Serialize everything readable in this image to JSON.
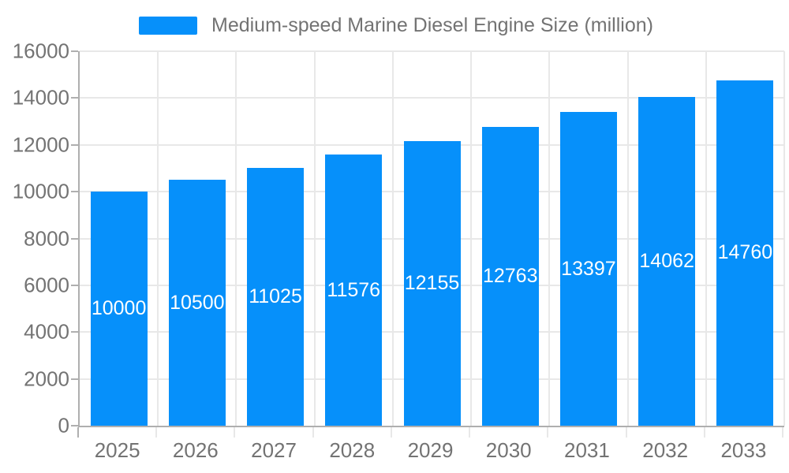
{
  "chart_data": {
    "type": "bar",
    "title": "Medium-speed Marine Diesel Engine Size (million)",
    "categories": [
      "2025",
      "2026",
      "2027",
      "2028",
      "2029",
      "2030",
      "2031",
      "2032",
      "2033"
    ],
    "values": [
      10000,
      10500,
      11025,
      11576,
      12155,
      12763,
      13397,
      14062,
      14760
    ],
    "value_labels": [
      "10000",
      "10500",
      "11025",
      "11576",
      "12155",
      "12763",
      "13397",
      "14062",
      "14760"
    ],
    "xlabel": "",
    "ylabel": "",
    "ylim": [
      0,
      16000
    ],
    "yticks": [
      0,
      2000,
      4000,
      6000,
      8000,
      10000,
      12000,
      14000,
      16000
    ],
    "grid": "on",
    "legend_position": "top",
    "colors": {
      "bar": "#0690FA",
      "bar_value_text": "#ffffff",
      "grid_line": "#e8e8e8",
      "axis_line": "#afafaf",
      "tick_text": "#737373",
      "legend_text": "#737373",
      "background": "#ffffff"
    }
  }
}
